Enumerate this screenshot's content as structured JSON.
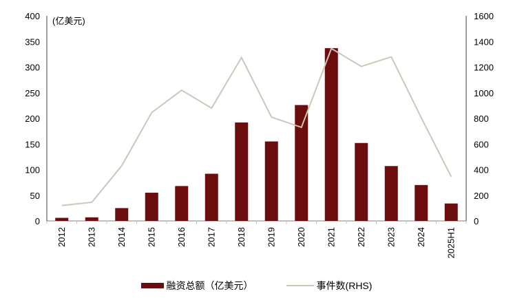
{
  "chart_data": {
    "type": "bar+line",
    "title": "",
    "unit_label": "(亿美元)",
    "categories": [
      "2012",
      "2013",
      "2014",
      "2015",
      "2016",
      "2017",
      "2018",
      "2019",
      "2020",
      "2021",
      "2022",
      "2023",
      "2024",
      "2025H1"
    ],
    "series": [
      {
        "name": "融资总额（亿美元）",
        "type": "bar",
        "axis": "left",
        "values": [
          6,
          7,
          25,
          55,
          68,
          92,
          192,
          155,
          226,
          337,
          152,
          107,
          70,
          34
        ]
      },
      {
        "name": "事件数(RHS)",
        "type": "line",
        "axis": "right",
        "values": [
          120,
          145,
          430,
          845,
          1020,
          880,
          1275,
          810,
          730,
          1345,
          1205,
          1280,
          805,
          345
        ]
      }
    ],
    "left_axis": {
      "min": 0,
      "max": 400,
      "step": 50,
      "tick_labels": [
        "0",
        "50",
        "100",
        "150",
        "200",
        "250",
        "300",
        "350",
        "400"
      ]
    },
    "right_axis": {
      "min": 0,
      "max": 1600,
      "step": 200,
      "tick_labels": [
        "0",
        "200",
        "400",
        "600",
        "800",
        "1000",
        "1200",
        "1400",
        "1600"
      ]
    },
    "grid": false,
    "legend_position": "bottom"
  },
  "legend": {
    "bar_label": "融资总额（亿美元）",
    "line_label": "事件数(RHS)"
  },
  "colors": {
    "bar": "#6b0d0c",
    "line": "#c8c9b8",
    "axis_line": "#404040",
    "baseline": "#bfbfbf",
    "text": "#000000",
    "background": "#ffffff"
  }
}
